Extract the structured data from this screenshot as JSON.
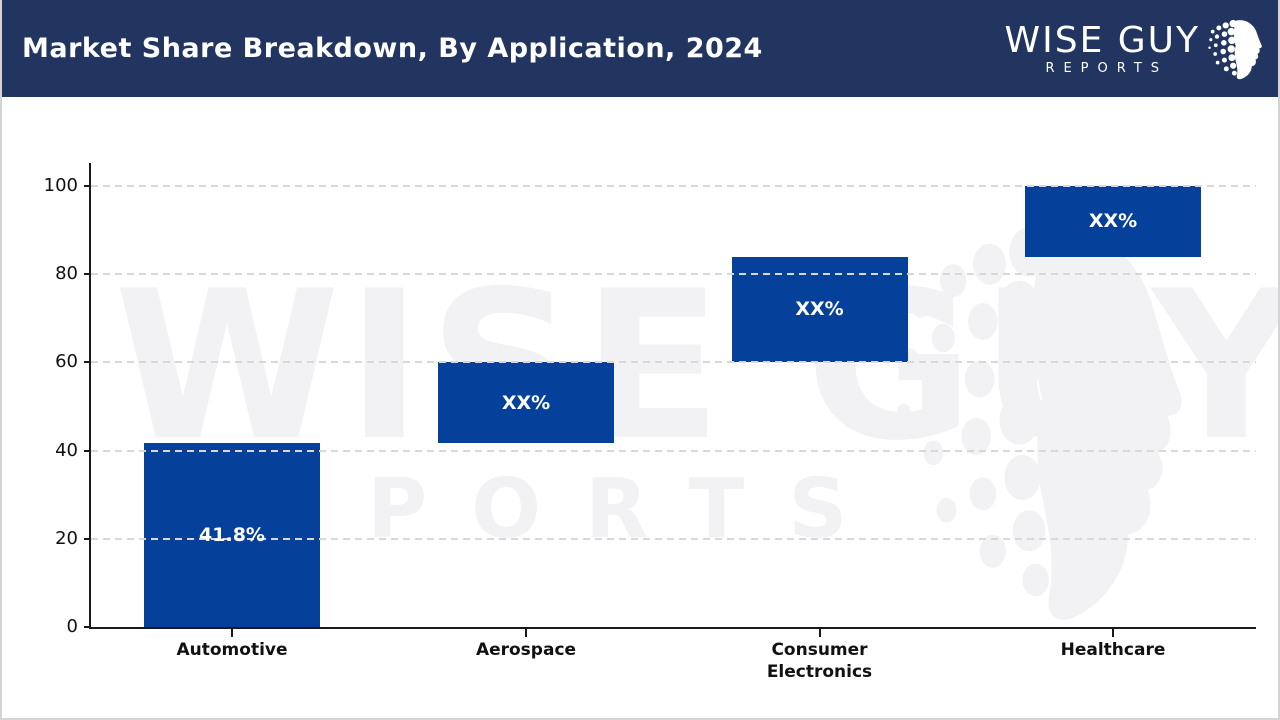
{
  "header": {
    "title": "Market Share Breakdown, By Application, 2024",
    "logo": {
      "line1": "WISE GUY",
      "line2": "REPORTS"
    }
  },
  "watermark": {
    "line1": "WISE GUY",
    "line2": "REPORTS"
  },
  "colors": {
    "header_bg": "#223560",
    "bar": "#05419b",
    "gridline": "#d8d8d8",
    "watermark": "#f2f2f4"
  },
  "chart_data": {
    "type": "bar",
    "subtype": "waterfall",
    "title": "Market Share Breakdown, By Application, 2024",
    "categories": [
      "Automotive",
      "Aerospace",
      "Consumer Electronics",
      "Healthcare"
    ],
    "bars": [
      {
        "category": "Automotive",
        "start": 0,
        "end": 41.8,
        "label": "41.8%"
      },
      {
        "category": "Aerospace",
        "start": 41.8,
        "end": 60,
        "label": "XX%"
      },
      {
        "category": "Consumer Electronics",
        "start": 60,
        "end": 84,
        "label": "XX%"
      },
      {
        "category": "Healthcare",
        "start": 84,
        "end": 100,
        "label": "XX%"
      }
    ],
    "yticks": [
      0,
      20,
      40,
      60,
      80,
      100
    ],
    "ylim": [
      0,
      105
    ],
    "xlabel": "",
    "ylabel": "",
    "grid": "horizontal-dashed",
    "legend": "none",
    "bar_color": "#05419b"
  }
}
